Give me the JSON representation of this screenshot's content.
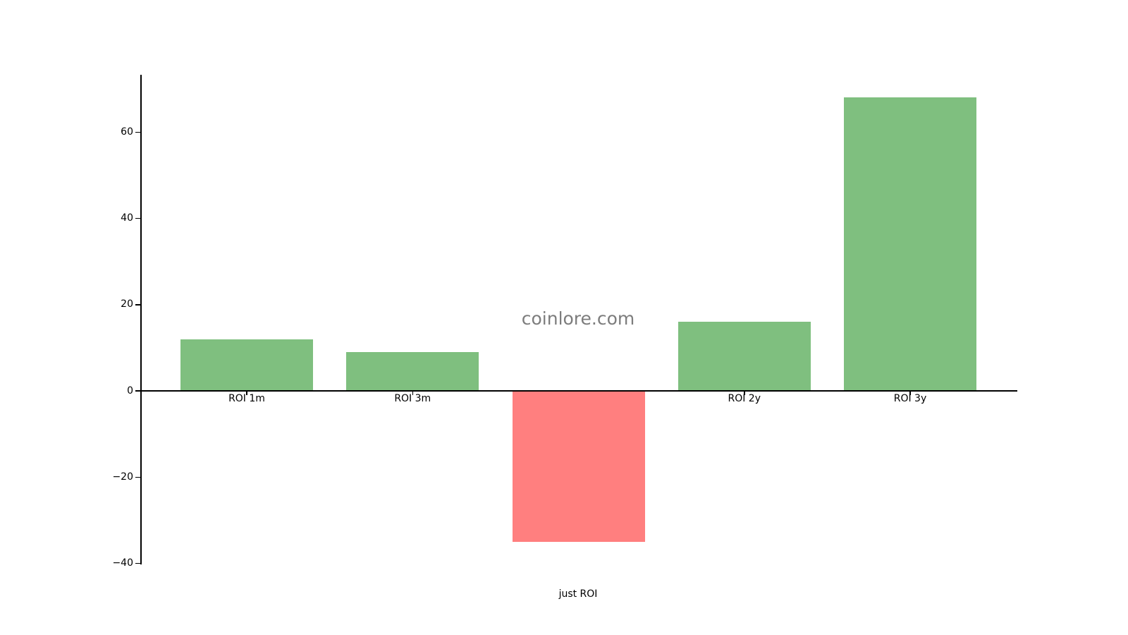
{
  "chart_data": {
    "type": "bar",
    "categories": [
      "ROI 1m",
      "ROI 3m",
      "",
      "ROI 2y",
      "ROI 3y"
    ],
    "values": [
      12,
      9,
      -35,
      16,
      68
    ],
    "bar_colors": [
      "#7fbf7f",
      "#7fbf7f",
      "#ff7f7f",
      "#7fbf7f",
      "#7fbf7f"
    ],
    "positive_color": "#7fbf7f",
    "negative_color": "#ff7f7f",
    "title": "",
    "xlabel": "just ROI",
    "ylabel": "",
    "yticks": [
      60,
      40,
      20,
      0,
      -20,
      -40
    ],
    "ylim": [
      -40.2,
      73.3
    ],
    "grid": false,
    "legend_position": "none",
    "axis_color": "#000000"
  },
  "watermark": {
    "text": "coinlore.com",
    "color": "#7d7d7d"
  }
}
